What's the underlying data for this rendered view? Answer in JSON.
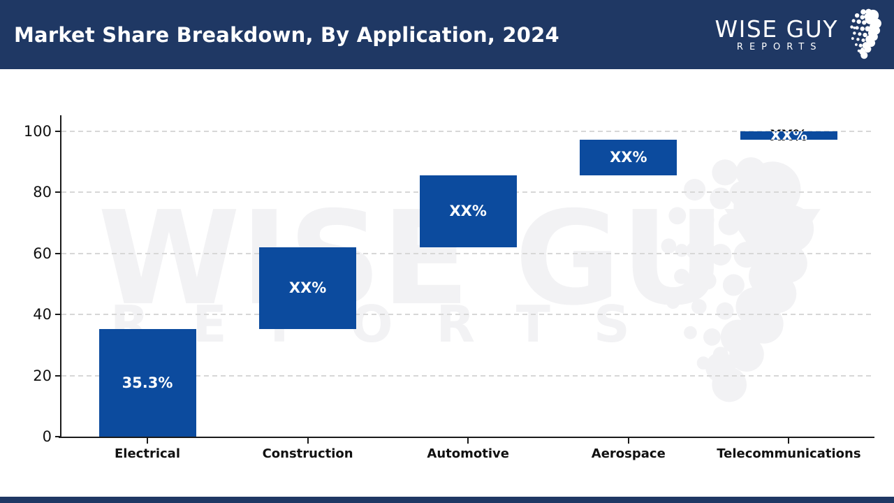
{
  "header": {
    "title": "Market Share Breakdown, By Application, 2024",
    "logo": {
      "line1": "WISE GUY",
      "line2": "REPORTS"
    }
  },
  "watermark": {
    "line1": "WISE GUY",
    "line2": "REPORTS"
  },
  "chart_data": {
    "type": "bar",
    "subtype": "waterfall",
    "title": "Market Share Breakdown, By Application, 2024",
    "categories": [
      "Electrical",
      "Construction",
      "Automotive",
      "Aerospace",
      "Telecommunications"
    ],
    "segments": [
      {
        "category": "Electrical",
        "start": 0,
        "end": 35.3,
        "label": "35.3%"
      },
      {
        "category": "Construction",
        "start": 35.3,
        "end": 62.0,
        "label": "XX%"
      },
      {
        "category": "Automotive",
        "start": 62.0,
        "end": 85.5,
        "label": "XX%"
      },
      {
        "category": "Aerospace",
        "start": 85.5,
        "end": 97.2,
        "label": "XX%"
      },
      {
        "category": "Telecommunications",
        "start": 97.2,
        "end": 100,
        "label": "XX%"
      }
    ],
    "yticks": [
      0,
      20,
      40,
      60,
      80,
      100
    ],
    "ylim": [
      0,
      105
    ],
    "xlabel": "",
    "ylabel": "",
    "grid": "dashed-horizontal",
    "legend": null,
    "bar_color": "#0c4b9e",
    "bar_label_color": "#ffffff"
  },
  "colors": {
    "header_bg": "#1f3864",
    "footer_bg": "#1f3864",
    "bar": "#0c4b9e",
    "grid": "#d7d7d7",
    "axis": "#1a1a1a",
    "watermark": "#f2f2f4",
    "title_text": "#ffffff"
  }
}
